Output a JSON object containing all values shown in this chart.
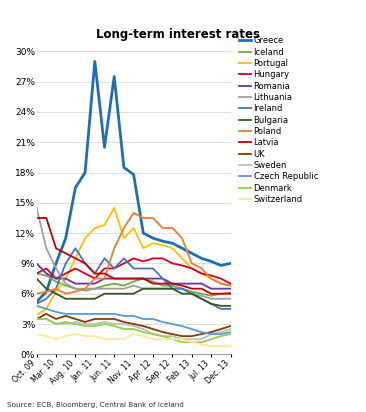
{
  "title": "Long-term interest rates",
  "source": "Source: ECB, Bloomberg, Central Bank of Iceland",
  "ylim": [
    0,
    31
  ],
  "yticks": [
    0,
    3,
    6,
    9,
    12,
    15,
    18,
    21,
    24,
    27,
    30
  ],
  "xtick_labels": [
    "Oct. 09",
    "Mar. 10",
    "Aug. 10",
    "Jan. 11",
    "Jun. 11",
    "Nov. 11",
    "Apr. 12",
    "Sep. 12",
    "Feb. 13",
    "Jul. 13",
    "Dec. 13"
  ],
  "series": [
    {
      "name": "Greece",
      "color": "#1f6eb5",
      "lw": 2.0,
      "data": [
        5.2,
        6.2,
        9.0,
        11.5,
        16.5,
        18.0,
        29.0,
        20.5,
        27.5,
        18.5,
        17.8,
        12.0,
        11.5,
        11.2,
        11.0,
        10.5,
        10.0,
        9.5,
        9.2,
        8.8,
        9.0
      ]
    },
    {
      "name": "Iceland",
      "color": "#70ad47",
      "lw": 1.3,
      "data": [
        8.0,
        7.8,
        7.2,
        6.8,
        6.5,
        6.3,
        6.5,
        6.8,
        7.0,
        6.8,
        7.2,
        7.5,
        7.2,
        6.8,
        6.8,
        6.5,
        6.2,
        6.0,
        5.8,
        6.0,
        6.1
      ]
    },
    {
      "name": "Portugal",
      "color": "#ffc000",
      "lw": 1.3,
      "data": [
        3.9,
        4.5,
        6.2,
        7.5,
        9.5,
        11.5,
        12.5,
        12.8,
        14.5,
        11.5,
        12.5,
        10.5,
        11.0,
        10.8,
        10.5,
        9.5,
        8.5,
        8.0,
        7.5,
        7.0,
        6.8
      ]
    },
    {
      "name": "Hungary",
      "color": "#d9001f",
      "lw": 1.3,
      "data": [
        8.0,
        8.5,
        7.5,
        8.0,
        8.5,
        8.0,
        7.5,
        8.5,
        8.5,
        9.0,
        9.5,
        9.2,
        9.5,
        9.5,
        9.0,
        8.8,
        8.5,
        8.0,
        7.8,
        7.5,
        7.0
      ]
    },
    {
      "name": "Romania",
      "color": "#7030a0",
      "lw": 1.3,
      "data": [
        9.0,
        8.0,
        7.5,
        7.5,
        7.0,
        7.0,
        7.0,
        7.5,
        7.5,
        7.5,
        7.5,
        7.5,
        7.5,
        7.5,
        7.0,
        7.0,
        7.0,
        7.0,
        6.5,
        6.5,
        6.5
      ]
    },
    {
      "name": "Lithuania",
      "color": "#9e9e9e",
      "lw": 1.3,
      "data": [
        14.5,
        10.5,
        8.5,
        7.0,
        6.5,
        6.5,
        6.5,
        6.5,
        6.5,
        6.5,
        6.8,
        6.5,
        6.5,
        6.5,
        6.5,
        6.5,
        6.0,
        5.8,
        5.5,
        5.5,
        5.5
      ]
    },
    {
      "name": "Ireland",
      "color": "#4472c4",
      "lw": 1.3,
      "data": [
        5.0,
        5.5,
        6.5,
        9.0,
        10.5,
        9.0,
        8.0,
        9.5,
        8.5,
        9.5,
        8.5,
        8.5,
        8.5,
        7.5,
        6.5,
        6.5,
        6.0,
        5.5,
        5.0,
        4.5,
        4.5
      ]
    },
    {
      "name": "Bulgaria",
      "color": "#375623",
      "lw": 1.3,
      "data": [
        7.5,
        6.5,
        6.0,
        5.5,
        5.5,
        5.5,
        5.5,
        6.0,
        6.0,
        6.0,
        6.0,
        6.5,
        6.5,
        6.5,
        6.5,
        6.0,
        6.0,
        5.5,
        5.0,
        4.8,
        4.8
      ]
    },
    {
      "name": "Poland",
      "color": "#ed7d31",
      "lw": 1.3,
      "data": [
        6.0,
        6.2,
        6.5,
        6.0,
        6.2,
        6.5,
        7.5,
        7.5,
        10.5,
        12.5,
        14.0,
        13.5,
        13.5,
        12.5,
        12.5,
        11.5,
        9.0,
        8.5,
        7.5,
        7.0,
        6.8
      ]
    },
    {
      "name": "Latvia",
      "color": "#c00000",
      "lw": 1.3,
      "data": [
        13.5,
        13.5,
        10.5,
        10.0,
        9.5,
        9.0,
        8.0,
        8.0,
        7.5,
        7.5,
        7.5,
        7.5,
        7.0,
        7.0,
        7.0,
        6.8,
        6.5,
        6.5,
        6.0,
        6.0,
        6.0
      ]
    },
    {
      "name": "UK",
      "color": "#833c00",
      "lw": 1.3,
      "data": [
        3.5,
        4.0,
        3.5,
        3.8,
        3.5,
        3.2,
        3.5,
        3.5,
        3.5,
        3.2,
        3.0,
        2.8,
        2.5,
        2.2,
        2.0,
        1.8,
        1.8,
        2.0,
        2.2,
        2.5,
        2.8
      ]
    },
    {
      "name": "Sweden",
      "color": "#bfbfbf",
      "lw": 1.3,
      "data": [
        3.5,
        3.5,
        3.0,
        3.0,
        3.2,
        3.0,
        3.0,
        3.2,
        3.0,
        3.0,
        2.8,
        2.5,
        2.0,
        1.8,
        1.8,
        1.5,
        1.5,
        1.5,
        2.0,
        2.2,
        2.5
      ]
    },
    {
      "name": "Czech Republic",
      "color": "#5b9bd5",
      "lw": 1.3,
      "data": [
        4.8,
        4.5,
        4.2,
        4.0,
        4.0,
        4.0,
        4.0,
        4.0,
        4.0,
        3.8,
        3.8,
        3.5,
        3.5,
        3.2,
        3.0,
        2.8,
        2.5,
        2.2,
        2.0,
        2.0,
        2.2
      ]
    },
    {
      "name": "Denmark",
      "color": "#92d050",
      "lw": 1.3,
      "data": [
        3.5,
        3.5,
        3.0,
        3.2,
        3.0,
        2.8,
        2.8,
        3.0,
        2.8,
        2.5,
        2.5,
        2.2,
        2.0,
        1.8,
        1.5,
        1.2,
        1.2,
        1.2,
        1.5,
        1.8,
        2.0
      ]
    },
    {
      "name": "Switzerland",
      "color": "#ffe699",
      "lw": 1.3,
      "data": [
        2.0,
        1.8,
        1.5,
        1.8,
        2.0,
        1.8,
        1.8,
        1.5,
        1.5,
        1.5,
        2.0,
        1.8,
        1.5,
        1.5,
        1.5,
        1.5,
        1.2,
        1.0,
        0.8,
        0.8,
        0.8
      ]
    }
  ],
  "n_points": 21,
  "bg_color": "#ffffff",
  "grid_color": "#d0d0d0"
}
